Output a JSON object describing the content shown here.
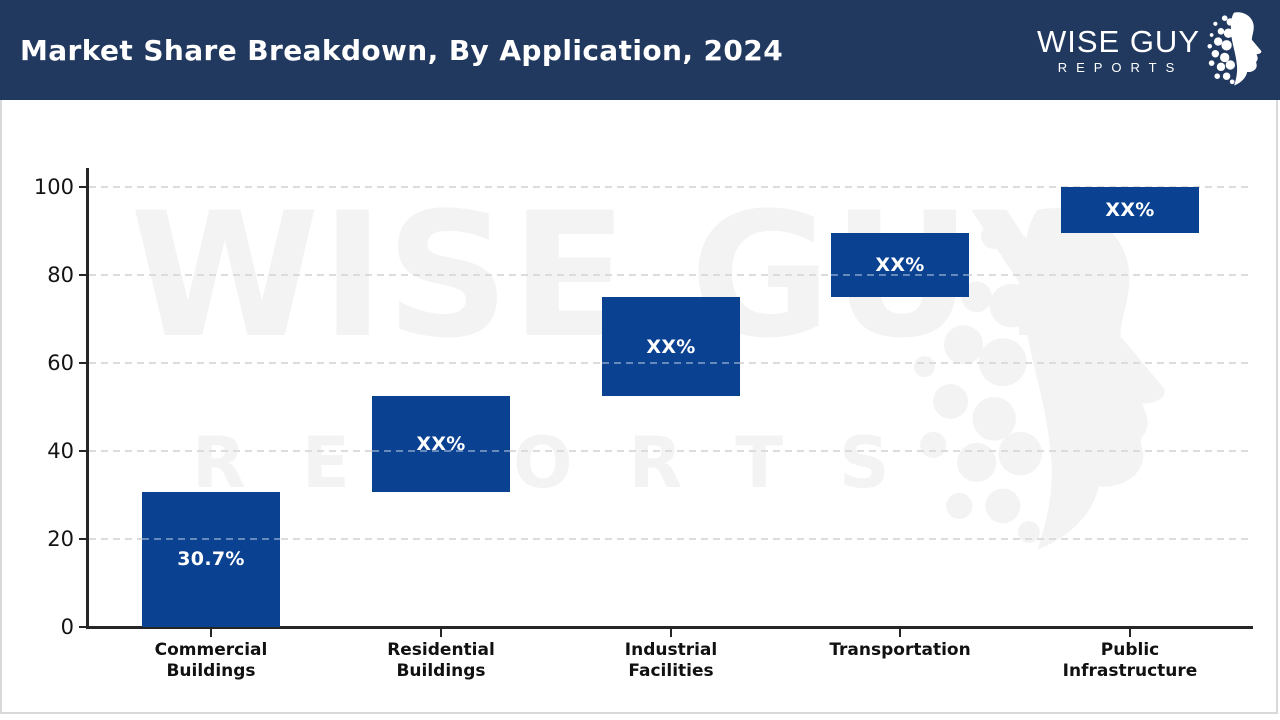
{
  "header": {
    "title": "Market Share Breakdown, By Application, 2024",
    "logo": {
      "line1": "WISE GUY",
      "line2": "REPORTS"
    }
  },
  "watermark": {
    "line1": "WISE GUY",
    "line2": "REPORTS"
  },
  "chart_data": {
    "type": "bar",
    "subtype": "waterfall",
    "title": "Market Share Breakdown, By Application, 2024",
    "xlabel": "",
    "ylabel": "",
    "ylim": [
      0,
      100
    ],
    "yticks": [
      0,
      20,
      40,
      60,
      80,
      100
    ],
    "grid": "horizontal-dashed",
    "legend": "none",
    "bar_color": "#0A4191",
    "value_label_color": "#ffffff",
    "categories": [
      "Commercial Buildings",
      "Residential Buildings",
      "Industrial Facilities",
      "Transportation",
      "Public Infrastructure"
    ],
    "category_lines": [
      [
        "Commercial",
        "Buildings"
      ],
      [
        "Residential",
        "Buildings"
      ],
      [
        "Industrial",
        "Facilities"
      ],
      [
        "Transportation"
      ],
      [
        "Public",
        "Infrastructure"
      ]
    ],
    "segments": [
      {
        "category": "Commercial Buildings",
        "start": 0,
        "end": 30.7,
        "label": "30.7%"
      },
      {
        "category": "Residential Buildings",
        "start": 30.7,
        "end": 52.5,
        "label": "XX%"
      },
      {
        "category": "Industrial Facilities",
        "start": 52.5,
        "end": 75.0,
        "label": "XX%"
      },
      {
        "category": "Transportation",
        "start": 75.0,
        "end": 89.5,
        "label": "XX%"
      },
      {
        "category": "Public Infrastructure",
        "start": 89.5,
        "end": 100.0,
        "label": "XX%"
      }
    ]
  }
}
